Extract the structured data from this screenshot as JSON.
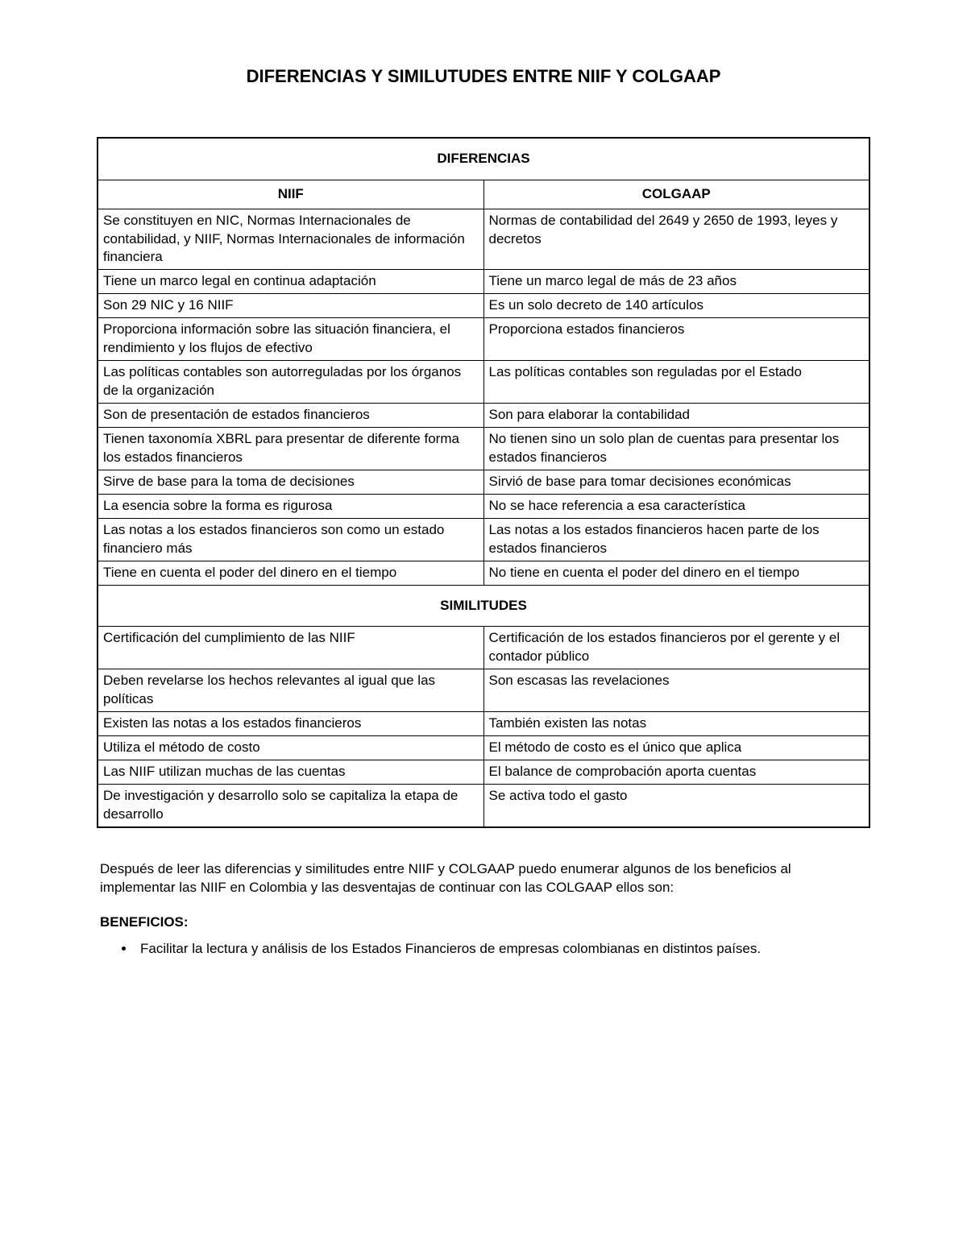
{
  "title": "DIFERENCIAS Y SIMILUTUDES ENTRE NIIF Y COLGAAP",
  "sections": {
    "diferencias_header": "DIFERENCIAS",
    "similitudes_header": "SIMILITUDES",
    "col_niif": "NIIF",
    "col_colgaap": "COLGAAP"
  },
  "diferencias": [
    {
      "niif": "Se constituyen en NIC, Normas Internacionales de contabilidad, y NIIF, Normas Internacionales de información financiera",
      "colgaap": "Normas de contabilidad del 2649 y 2650 de 1993, leyes y decretos"
    },
    {
      "niif": "Tiene un marco legal en continua adaptación",
      "colgaap": "Tiene un marco legal de más de 23 años"
    },
    {
      "niif": "Son 29 NIC y 16 NIIF",
      "colgaap": "Es un solo decreto de 140 artículos"
    },
    {
      "niif": "Proporciona información sobre las situación financiera, el rendimiento y los flujos de efectivo",
      "colgaap": "Proporciona estados financieros"
    },
    {
      "niif": "Las políticas contables son autorreguladas por los órganos de la organización",
      "colgaap": "Las políticas contables son reguladas por el Estado"
    },
    {
      "niif": "Son de presentación de estados financieros",
      "colgaap": "Son para elaborar la contabilidad"
    },
    {
      "niif": "Tienen taxonomía XBRL para presentar de diferente forma los estados financieros",
      "colgaap": "No tienen sino un solo plan de cuentas para presentar los estados financieros"
    },
    {
      "niif": "Sirve de base para la toma de decisiones",
      "colgaap": "Sirvió de base para tomar decisiones económicas"
    },
    {
      "niif": "La esencia sobre la forma es rigurosa",
      "colgaap": "No se hace referencia a esa característica"
    },
    {
      "niif": "Las notas a los estados financieros son como un estado financiero más",
      "colgaap": "Las notas a los estados financieros hacen parte de los estados financieros"
    },
    {
      "niif": "Tiene en cuenta el poder del dinero en el tiempo",
      "colgaap": "No tiene en cuenta el poder del dinero en el tiempo"
    }
  ],
  "similitudes": [
    {
      "niif": "Certificación del cumplimiento de las NIIF",
      "colgaap": "Certificación de los estados financieros por el gerente y el contador público"
    },
    {
      "niif": "Deben revelarse los hechos relevantes al igual que las políticas",
      "colgaap": "Son escasas las revelaciones"
    },
    {
      "niif": "Existen las notas a los estados financieros",
      "colgaap": "También existen las notas"
    },
    {
      "niif": "Utiliza el método de costo",
      "colgaap": "El método de costo es el único que aplica"
    },
    {
      "niif": "Las NIIF utilizan muchas de las cuentas",
      "colgaap": "El balance de comprobación aporta cuentas"
    },
    {
      "niif": "De investigación y desarrollo solo se capitaliza la etapa de desarrollo",
      "colgaap": "Se activa todo el gasto"
    }
  ],
  "paragraph": "Después de leer las diferencias  y similitudes entre NIIF y COLGAAP puedo enumerar algunos de los beneficios al implementar las NIIF en Colombia y las desventajas de continuar con las COLGAAP ellos son:",
  "beneficios_label": "BENEFICIOS:",
  "beneficios": [
    "Facilitar la lectura y análisis de los Estados Financieros de empresas colombianas en distintos países."
  ],
  "style": {
    "background_color": "#ffffff",
    "text_color": "#000000",
    "border_color": "#000000",
    "title_fontsize": 22,
    "body_fontsize": 17,
    "font_family": "Arial"
  }
}
